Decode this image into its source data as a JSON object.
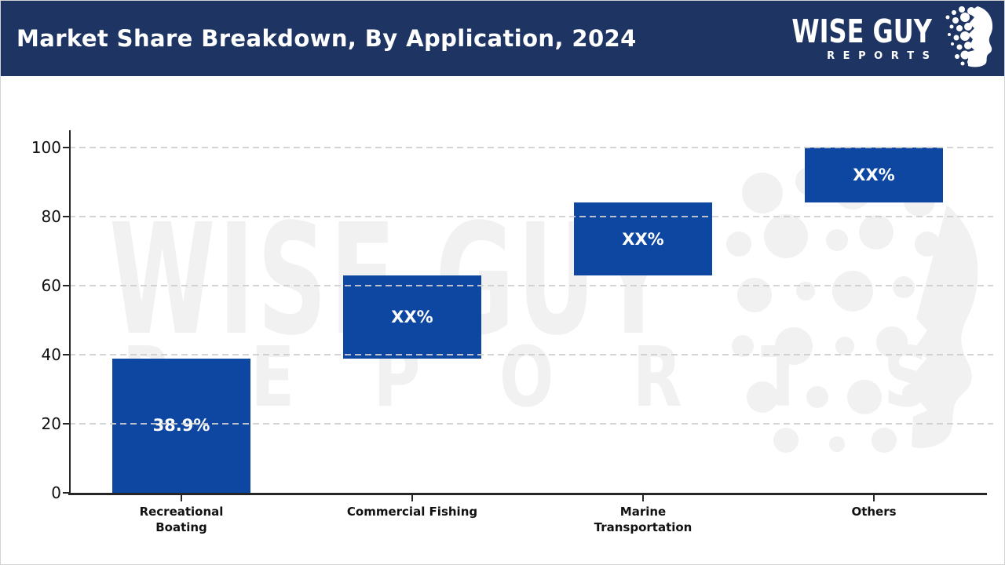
{
  "header": {
    "title": "Market Share Breakdown, By Application, 2024"
  },
  "logo": {
    "line1": "WISE GUY",
    "line2": "R E P O R T S"
  },
  "watermark": {
    "line1": "WISE GUY",
    "line2": "R E P O R T S"
  },
  "chart_data": {
    "type": "bar",
    "subtype": "floating-waterfall",
    "title": "Market Share Breakdown, By Application, 2024",
    "categories": [
      "Recreational Boating",
      "Commercial Fishing",
      "Marine Transportation",
      "Others"
    ],
    "category_lines": [
      [
        "Recreational",
        "Boating"
      ],
      [
        "Commercial Fishing"
      ],
      [
        "Marine",
        "Transportation"
      ],
      [
        "Others"
      ]
    ],
    "segments": [
      {
        "category": "Recreational Boating",
        "label": "38.9%",
        "start": 0,
        "end": 38.9
      },
      {
        "category": "Commercial Fishing",
        "label": "XX%",
        "start": 38.9,
        "end": 63
      },
      {
        "category": "Marine Transportation",
        "label": "XX%",
        "start": 63,
        "end": 84
      },
      {
        "category": "Others",
        "label": "XX%",
        "start": 84,
        "end": 100
      }
    ],
    "ylim": [
      0,
      100
    ],
    "yticks": [
      0,
      20,
      40,
      60,
      80,
      100
    ],
    "grid": "dashed-horizontal",
    "legend": "none",
    "bar_color": "#0d47a1",
    "bar_label_color": "#ffffff",
    "header_color": "#1e3563"
  }
}
